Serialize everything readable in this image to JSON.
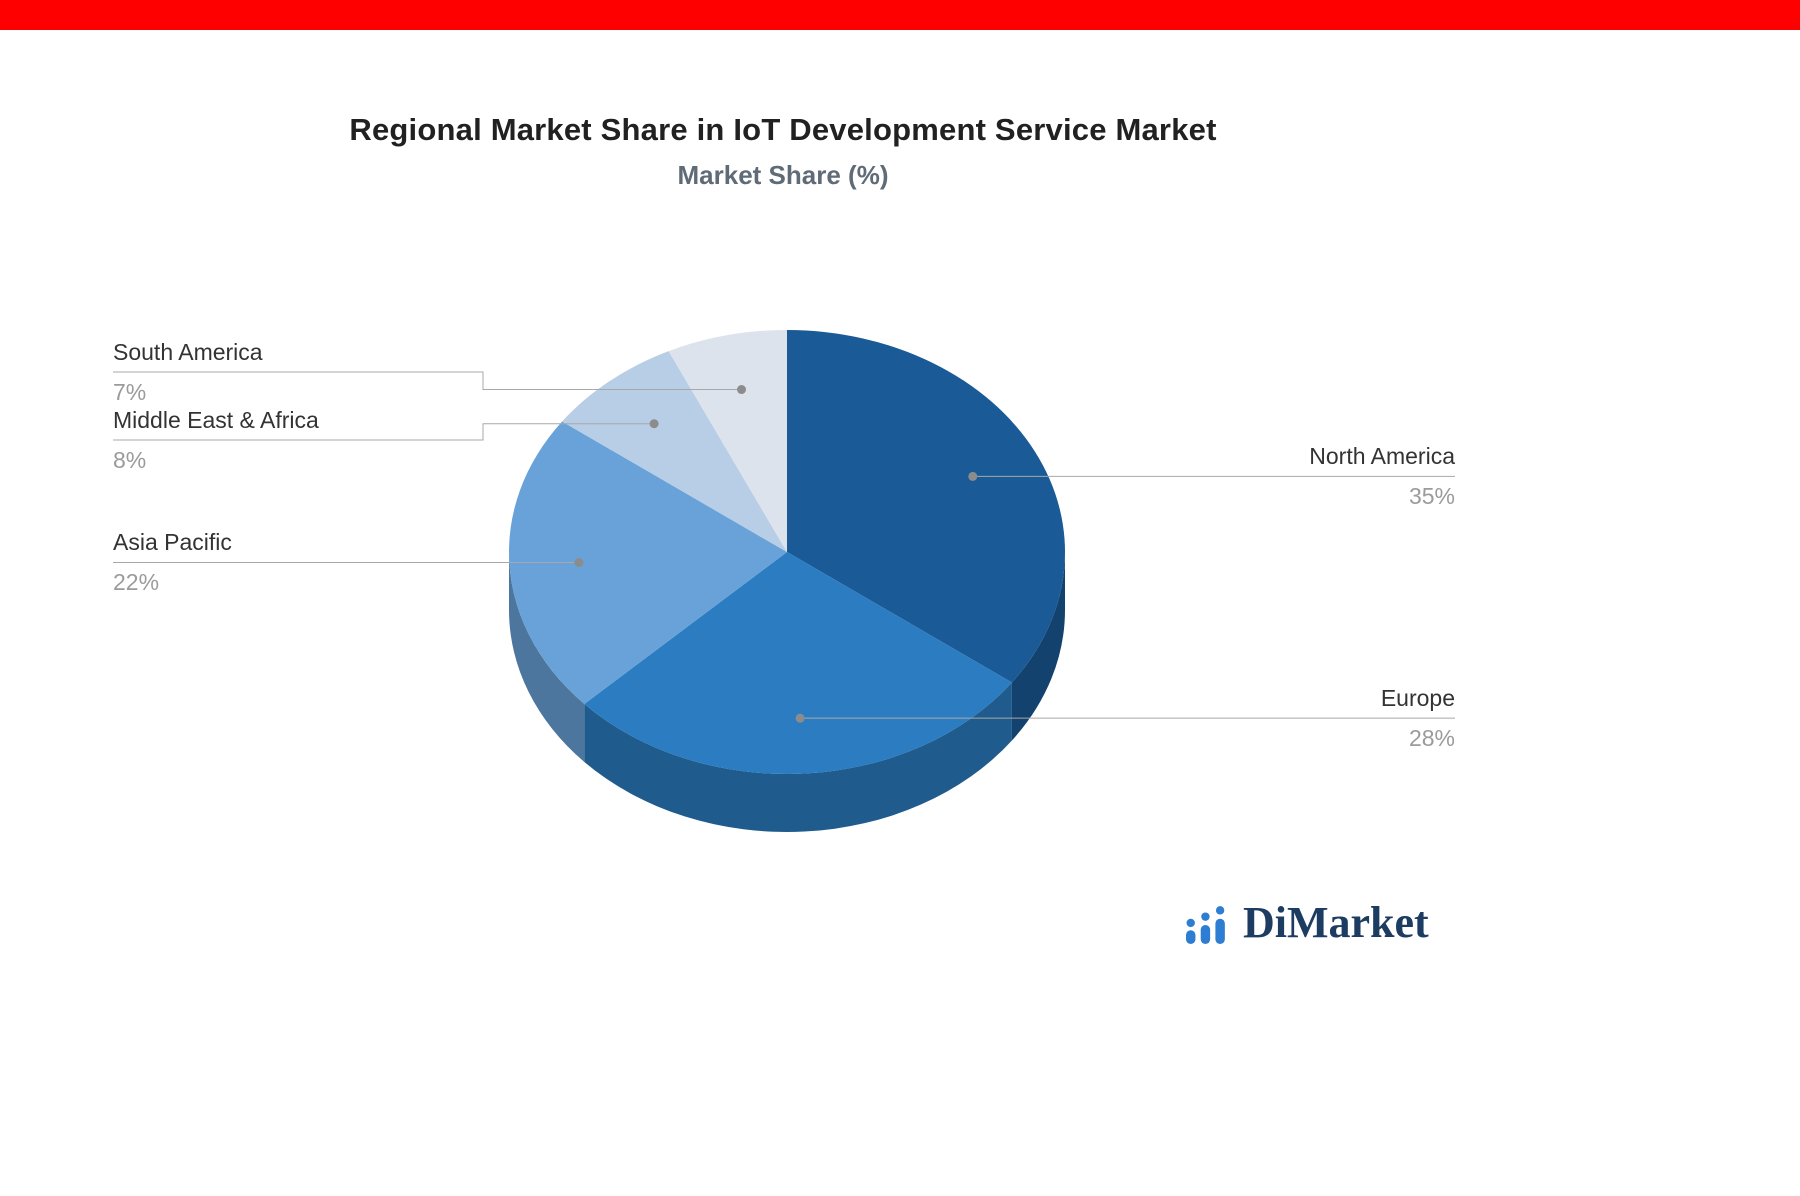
{
  "top_bar": {
    "color": "#ff0000"
  },
  "chart_data": {
    "type": "pie",
    "style": "3d",
    "title": "Regional Market Share in IoT Development Service Market",
    "subtitle": "Market Share (%)",
    "unit": "%",
    "labels": [
      "North America",
      "Europe",
      "Asia Pacific",
      "Middle East & Africa",
      "South America"
    ],
    "values": [
      35,
      28,
      22,
      8,
      7
    ],
    "value_labels": [
      "35%",
      "28%",
      "22%",
      "8%",
      "7%"
    ],
    "colors": [
      "#1a5a96",
      "#2b7cc1",
      "#69a2d8",
      "#b7cee6",
      "#dce3ec"
    ],
    "start_angle_deg": 0,
    "direction": "clockwise",
    "legend_position": "leader-line-labels",
    "leader_line_color": "#a8a8a8",
    "leader_dot_color": "#8c8c8c"
  },
  "branding": {
    "logo_text": "DiMarket",
    "logo_icon": "bar-chart-icon",
    "text_color": "#1c3c61",
    "icon_color": "#2d7dd2"
  }
}
